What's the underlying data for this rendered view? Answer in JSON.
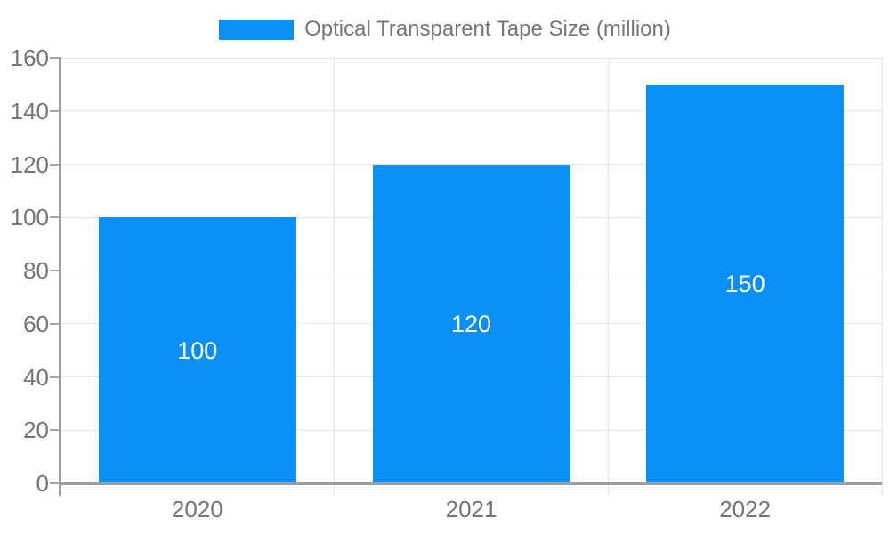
{
  "chart_data": {
    "type": "bar",
    "title": "Optical Transparent Tape Size (million)",
    "categories": [
      "2020",
      "2021",
      "2022"
    ],
    "series": [
      {
        "name": "Optical Transparent Tape Size (million)",
        "values": [
          100,
          120,
          150
        ]
      }
    ],
    "bar_value_labels": [
      "100",
      "120",
      "150"
    ],
    "xlabel": "",
    "ylabel": "",
    "ylim": [
      0,
      160
    ],
    "yticks": [
      0,
      20,
      40,
      60,
      80,
      100,
      120,
      140,
      160
    ],
    "grid": true,
    "legend_position": "top-center",
    "colors": {
      "bar": "#0A90F5",
      "axis": "#9E9E9E",
      "tick": "#A6A6A6",
      "gridline": "#E6E6E6",
      "text": "#757575",
      "value_label": "#FFFFFF",
      "background": "#FFFFFF"
    }
  }
}
